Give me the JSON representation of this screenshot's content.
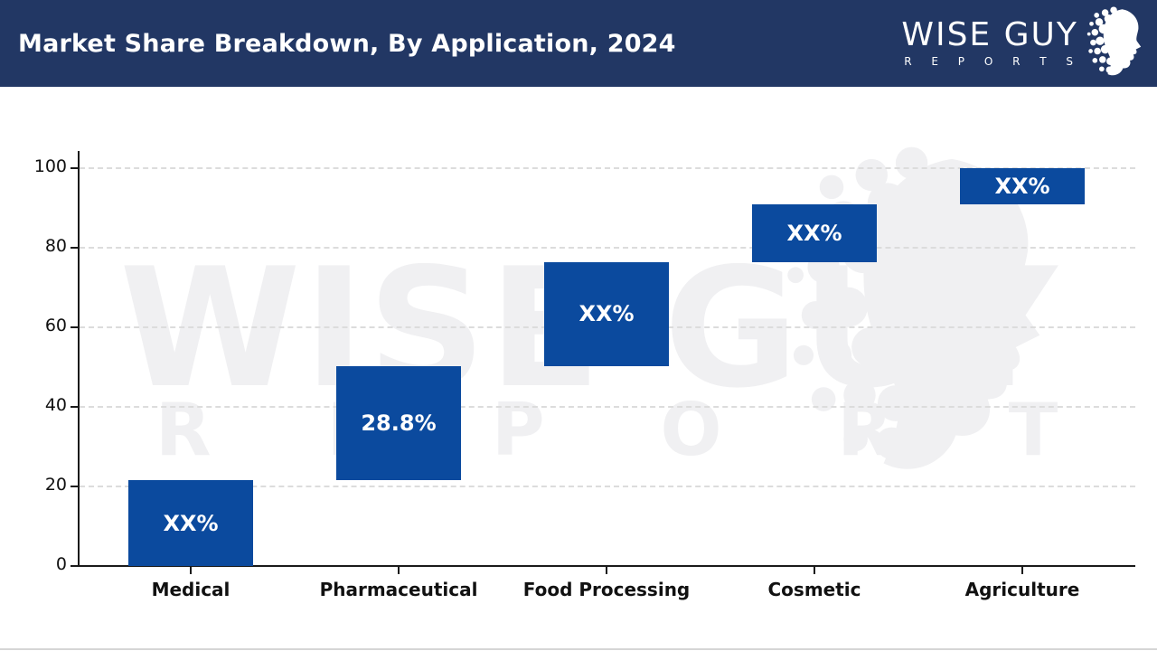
{
  "header": {
    "title": "Market Share Breakdown, By Application, 2024",
    "bg_color": "#223764",
    "logo": {
      "line1": "WISE GUY",
      "line2": "R E P O R T S"
    }
  },
  "watermark": {
    "line1": "WISE GUY",
    "line2": "R E P O R T S"
  },
  "chart_data": {
    "type": "bar",
    "subtype": "waterfall",
    "title": "Market Share Breakdown, By Application, 2024",
    "categories": [
      "Medical",
      "Pharmaceutical",
      "Food Processing",
      "Cosmetic",
      "Agriculture"
    ],
    "segments": [
      {
        "category": "Medical",
        "start": 0,
        "end": 21.5,
        "label": "XX%"
      },
      {
        "category": "Pharmaceutical",
        "start": 21.5,
        "end": 50.3,
        "label": "28.8%",
        "value": 28.8
      },
      {
        "category": "Food Processing",
        "start": 50.3,
        "end": 76.3,
        "label": "XX%"
      },
      {
        "category": "Cosmetic",
        "start": 76.3,
        "end": 91.0,
        "label": "XX%"
      },
      {
        "category": "Agriculture",
        "start": 91.0,
        "end": 100,
        "label": "XX%"
      }
    ],
    "ylim": [
      0,
      100
    ],
    "yticks": [
      0,
      20,
      40,
      60,
      80,
      100
    ],
    "grid": "horizontal dashed",
    "legend": "none",
    "bar_color": "#0b4a9e",
    "bar_label_color": "#ffffff",
    "axis_color": "#1a1a1a"
  }
}
